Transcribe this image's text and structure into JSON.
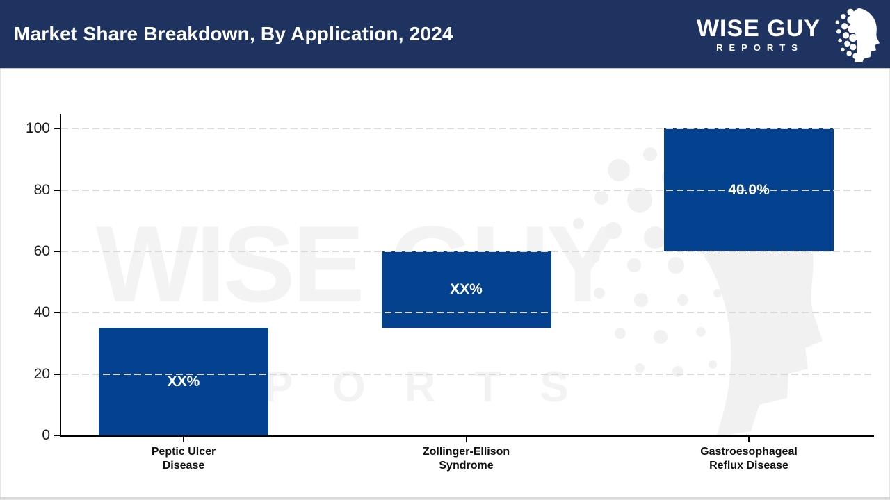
{
  "header": {
    "title": "Market Share Breakdown, By Application, 2024",
    "brand": {
      "name": "WISE GUY",
      "subtitle": "REPORTS"
    }
  },
  "watermark": {
    "name": "WISE GUY",
    "subtitle": "REPORTS"
  },
  "chart_data": {
    "type": "bar",
    "variant": "floating-segment-bars (waterfall style market share)",
    "title": "Market Share Breakdown, By Application, 2024",
    "categories": [
      {
        "line1": "Peptic Ulcer",
        "line2": "Disease"
      },
      {
        "line1": "Zollinger-Ellison",
        "line2": "Syndrome"
      },
      {
        "line1": "Gastroesophageal",
        "line2": "Reflux Disease"
      }
    ],
    "bars": [
      {
        "category": "Peptic Ulcer Disease",
        "start": 0,
        "end": 35,
        "label": "XX%"
      },
      {
        "category": "Zollinger-Ellison Syndrome",
        "start": 35,
        "end": 60,
        "label": "XX%"
      },
      {
        "category": "Gastroesophageal Reflux Disease",
        "start": 60,
        "end": 100,
        "label": "40.0%"
      }
    ],
    "yticks": [
      0,
      20,
      40,
      60,
      80,
      100
    ],
    "ylim": [
      0,
      105
    ],
    "xlabel": "",
    "ylabel": "",
    "grid": {
      "axis": "y",
      "style": "dashed",
      "color": "#d9d9d9",
      "drawn_over_bars": true
    },
    "legend": "none",
    "bar_color": "#04418f",
    "bar_label_color": "#ffffff",
    "axis_color": "#000000",
    "tick_label_color": "#1a1a1a"
  },
  "colors": {
    "header_bg": "#1f3361",
    "page_bg": "#ffffff",
    "watermark": "#f3f3f3",
    "edge_line": "#d9d9d9"
  }
}
